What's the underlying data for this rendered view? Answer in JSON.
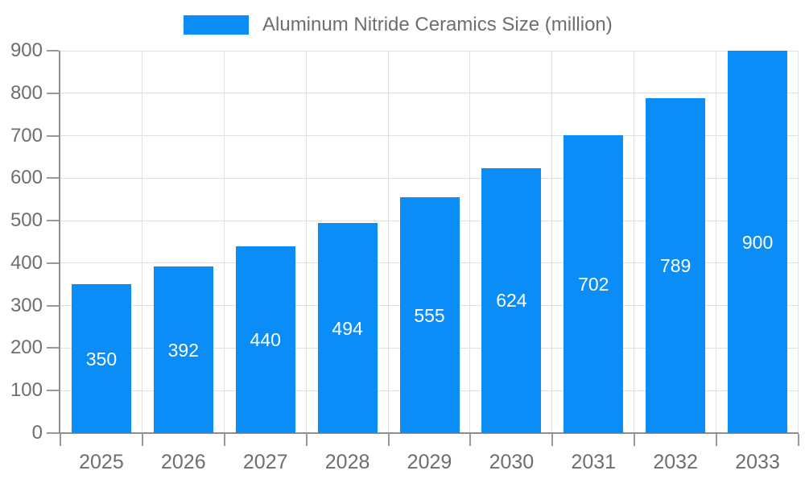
{
  "legend": {
    "label": "Aluminum Nitride Ceramics Size (million)"
  },
  "chart_data": {
    "type": "bar",
    "title": "Aluminum Nitride Ceramics Size (million)",
    "series_name": "Aluminum Nitride Ceramics Size (million)",
    "categories": [
      "2025",
      "2026",
      "2027",
      "2028",
      "2029",
      "2030",
      "2031",
      "2032",
      "2033"
    ],
    "values": [
      350,
      392,
      440,
      494,
      555,
      624,
      702,
      789,
      900
    ],
    "xlabel": "",
    "ylabel": "",
    "ylim": [
      0,
      900
    ],
    "ytick_step": 100,
    "ytick_labels": [
      "0",
      "100",
      "200",
      "300",
      "400",
      "500",
      "600",
      "700",
      "800",
      "900"
    ],
    "grid": true,
    "legend_position": "top-center",
    "bar_color": "#0b8df8",
    "bar_label_color": "#ffffff",
    "axis_text_color": "#6e6e6e"
  }
}
